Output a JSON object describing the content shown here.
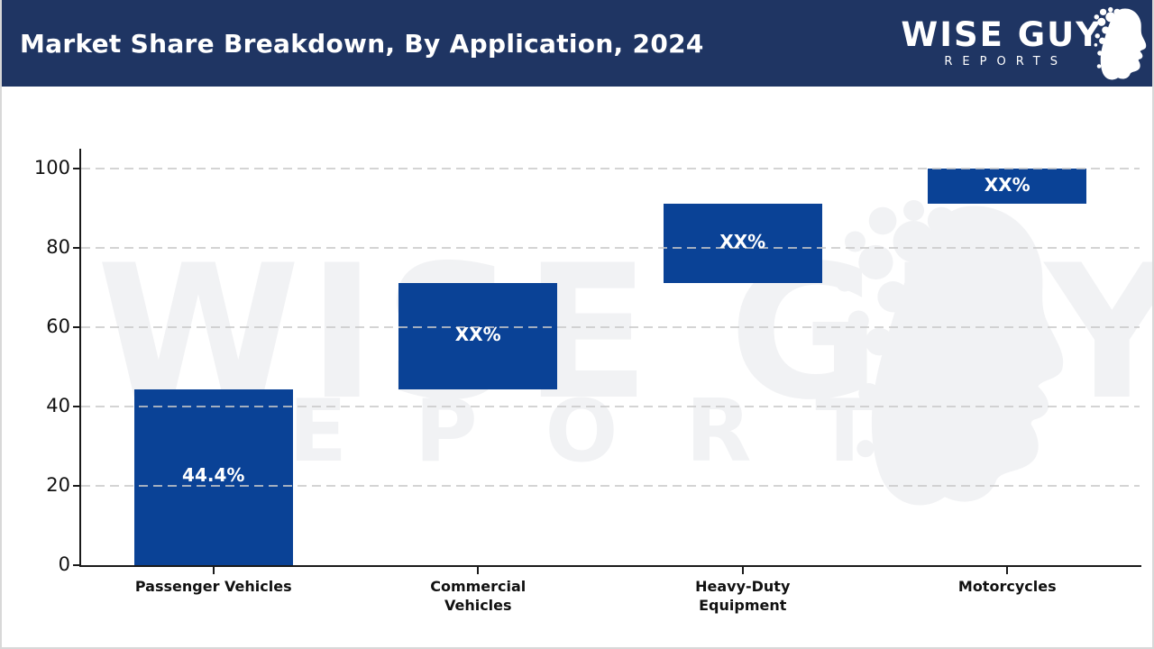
{
  "brand": {
    "name": "WISE GUY",
    "subtitle": "REPORTS"
  },
  "watermark": {
    "line1": "WISE GUY",
    "line2": "REPORTS"
  },
  "chart_data": {
    "type": "bar",
    "variant": "waterfall",
    "title": "Market Share Breakdown, By Application, 2024",
    "categories": [
      "Passenger Vehicles",
      "Commercial\nVehicles",
      "Heavy-Duty\nEquipment",
      "Motorcycles"
    ],
    "segments": [
      {
        "category": "Passenger Vehicles",
        "start": 0,
        "end": 44.4,
        "label": "44.4%"
      },
      {
        "category": "Commercial Vehicles",
        "start": 44.4,
        "end": 71.1,
        "label": "XX%"
      },
      {
        "category": "Heavy-Duty Equipment",
        "start": 71.1,
        "end": 91.1,
        "label": "XX%"
      },
      {
        "category": "Motorcycles",
        "start": 91.1,
        "end": 100,
        "label": "XX%"
      }
    ],
    "ylim": [
      0,
      100
    ],
    "yticks": [
      0,
      20,
      40,
      60,
      80,
      100
    ],
    "xlabel": "",
    "ylabel": "",
    "legend": "none",
    "grid": "horizontal-dashed",
    "bar_color": "#0a4296",
    "bar_label_color": "#ffffff",
    "header_bg_color": "#1f3563",
    "watermark_color": "#f1f2f4"
  }
}
